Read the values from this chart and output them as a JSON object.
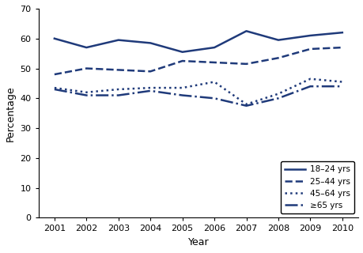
{
  "years": [
    2001,
    2002,
    2003,
    2004,
    2005,
    2006,
    2007,
    2008,
    2009,
    2010
  ],
  "series": {
    "18-24 yrs": [
      60.0,
      57.0,
      59.5,
      58.5,
      55.5,
      57.0,
      62.5,
      59.5,
      61.0,
      62.0
    ],
    "25-44 yrs": [
      48.0,
      50.0,
      49.5,
      49.0,
      52.5,
      52.0,
      51.5,
      53.5,
      56.5,
      57.0
    ],
    "45-64 yrs": [
      43.5,
      42.0,
      43.0,
      43.5,
      43.5,
      45.5,
      38.0,
      41.5,
      46.5,
      45.5
    ],
    ">=65 yrs": [
      43.0,
      41.0,
      41.0,
      42.5,
      41.0,
      40.0,
      37.5,
      40.0,
      44.0,
      44.0
    ]
  },
  "line_styles": {
    "18-24 yrs": "-",
    "25-44 yrs": "--",
    "45-64 yrs": ":",
    ">=65 yrs": "-."
  },
  "legend_labels": {
    "18-24 yrs": "18–24 yrs",
    "25-44 yrs": "25–44 yrs",
    "45-64 yrs": "45–64 yrs",
    ">=65 yrs": "≥65 yrs"
  },
  "line_color": "#1F3A7A",
  "linewidth": 1.8,
  "xlabel": "Year",
  "ylabel": "Percentage",
  "ylim": [
    0,
    70
  ],
  "yticks": [
    0,
    10,
    20,
    30,
    40,
    50,
    60,
    70
  ],
  "xlim": [
    2000.5,
    2010.5
  ],
  "xticks": [
    2001,
    2002,
    2003,
    2004,
    2005,
    2006,
    2007,
    2008,
    2009,
    2010
  ],
  "legend_pos": "lower right",
  "background_color": "#ffffff"
}
